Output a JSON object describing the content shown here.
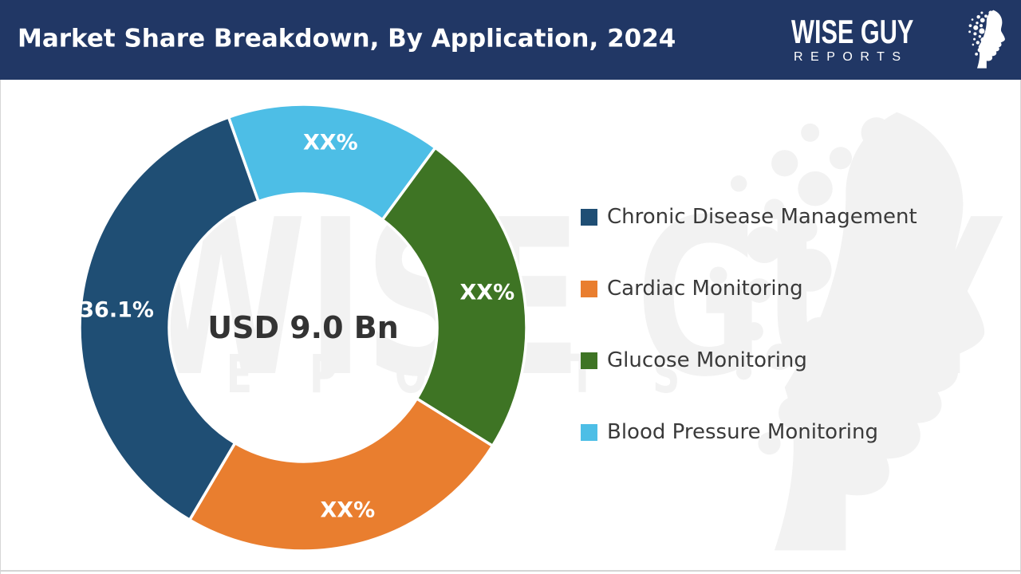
{
  "header": {
    "title": "Market Share Breakdown, By Application, 2024",
    "logo": {
      "line1": "WISE GUY",
      "line2": "REPORTS"
    }
  },
  "watermark": {
    "line1": "WISE GUY",
    "line2": "REPORTS"
  },
  "chart_data": {
    "type": "pie",
    "subtype": "donut",
    "title": "Market Share Breakdown, By Application, 2024",
    "center_label": "USD 9.0 Bn",
    "start_angle_deg": -19.5,
    "rotation": "clockwise",
    "legend_position": "right",
    "segments": [
      {
        "name": "Blood Pressure Monitoring",
        "display_label": "XX%",
        "value": 15.5,
        "color": "#4DBEE6"
      },
      {
        "name": "Glucose Monitoring",
        "display_label": "XX%",
        "value": 23.8,
        "color": "#3E7424"
      },
      {
        "name": "Cardiac Monitoring",
        "display_label": "XX%",
        "value": 24.6,
        "color": "#E97E2F"
      },
      {
        "name": "Chronic Disease Management",
        "display_label": "36.1%",
        "value": 36.1,
        "color": "#1F4E74"
      }
    ]
  },
  "legend": {
    "items": [
      {
        "label": "Chronic Disease Management",
        "color": "#1F4E74"
      },
      {
        "label": "Cardiac Monitoring",
        "color": "#E97E2F"
      },
      {
        "label": "Glucose Monitoring",
        "color": "#3E7424"
      },
      {
        "label": "Blood Pressure Monitoring",
        "color": "#4DBEE6"
      }
    ]
  },
  "colors": {
    "header_bg": "#213765",
    "segment_label_text": "#FFFFFF",
    "center_text": "#333333",
    "legend_text": "#3A3A3A",
    "watermark": "#F2F2F2"
  }
}
